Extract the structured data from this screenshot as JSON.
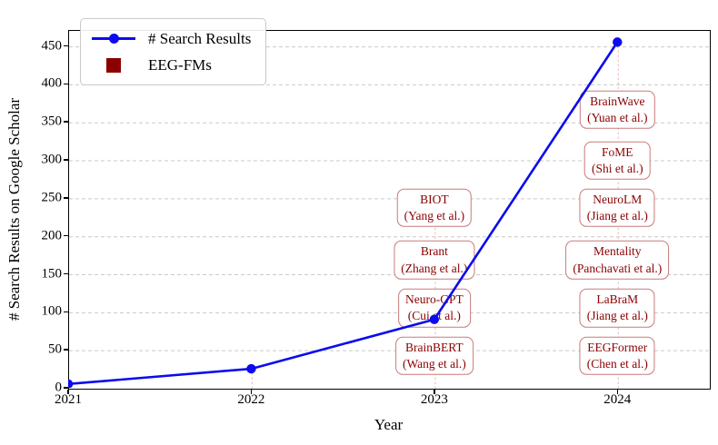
{
  "figure": {
    "xlabel": "Year",
    "ylabel": "# Search Results on Google Scholar"
  },
  "legend": {
    "items": [
      {
        "label": "# Search Results",
        "swatch": "line-with-circle-marker",
        "color": "#0b0bee"
      },
      {
        "label": "EEG-FMs",
        "swatch": "filled-square",
        "color": "#8b0000"
      }
    ]
  },
  "chart_data": {
    "type": "line",
    "x": [
      2021,
      2022,
      2023,
      2024
    ],
    "series": [
      {
        "name": "# Search Results",
        "values": [
          5,
          25,
          90,
          455
        ],
        "color": "#0b0bee",
        "marker": "circle"
      }
    ],
    "title": "",
    "xlabel": "Year",
    "ylabel": "# Search Results on Google Scholar",
    "xlim": [
      2021,
      2024.5
    ],
    "ylim": [
      0,
      471
    ],
    "xticks": [
      "2021",
      "2022",
      "2023",
      "2024"
    ],
    "yticks": [
      0,
      50,
      100,
      150,
      200,
      250,
      300,
      350,
      400,
      450
    ],
    "grid": "horizontal-dashed",
    "legend_position": "upper left",
    "stem_lines": [
      {
        "x": 2022,
        "from": 0,
        "to": 25
      },
      {
        "x": 2023,
        "from": 0,
        "to": 262
      },
      {
        "x": 2024,
        "from": 0,
        "to": 455
      }
    ],
    "annotations": [
      {
        "name": "BIOT",
        "cite": "(Yang et al.)",
        "x": 2023,
        "y": 237
      },
      {
        "name": "Brant",
        "cite": "(Zhang et al.)",
        "x": 2023,
        "y": 168
      },
      {
        "name": "Neuro-GPT",
        "cite": "(Cui et al.)",
        "x": 2023,
        "y": 105
      },
      {
        "name": "BrainBERT",
        "cite": "(Wang et al.)",
        "x": 2023,
        "y": 42
      },
      {
        "name": "BrainWave",
        "cite": "(Yuan et al.)",
        "x": 2024,
        "y": 366
      },
      {
        "name": "FoME",
        "cite": "(Shi et al.)",
        "x": 2024,
        "y": 299
      },
      {
        "name": "NeuroLM",
        "cite": "(Jiang et al.)",
        "x": 2024,
        "y": 237
      },
      {
        "name": "Mentality",
        "cite": "(Panchavati et al.)",
        "x": 2024,
        "y": 168
      },
      {
        "name": "LaBraM",
        "cite": "(Jiang et al.)",
        "x": 2024,
        "y": 105
      },
      {
        "name": "EEGFormer",
        "cite": "(Chen et al.)",
        "x": 2024,
        "y": 42
      }
    ]
  },
  "colors": {
    "line": "#0b0bee",
    "marker": "#0b0bee",
    "eeg_fm_square": "#8b0000",
    "annotation_text": "#8b0000",
    "annotation_border": "#ca7a7a",
    "stem_line": "#f0c2c2",
    "gridline": "#c9c9c9",
    "spine": "#000000",
    "background": "#ffffff"
  }
}
